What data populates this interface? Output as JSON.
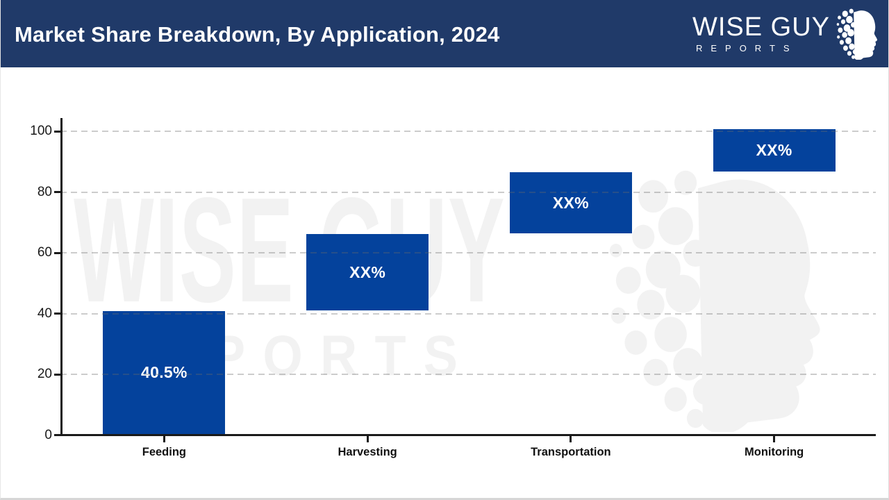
{
  "header": {
    "title": "Market Share Breakdown, By Application, 2024",
    "brand": {
      "name": "WISE GUY",
      "sub": "REPORTS"
    }
  },
  "watermark": {
    "name": "WISE GUY",
    "sub": "REPORTS"
  },
  "colors": {
    "header_bg": "#203a69",
    "bar": "#04429c",
    "axis_text": "#1a1a1a",
    "watermark": "#f2f2f2"
  },
  "chart_data": {
    "type": "bar",
    "subtype": "waterfall",
    "title": "Market Share Breakdown, By Application, 2024",
    "categories": [
      "Feeding",
      "Harvesting",
      "Transportation",
      "Monitoring"
    ],
    "bars": [
      {
        "category": "Feeding",
        "label": "40.5%",
        "start": 0,
        "end": 40.5
      },
      {
        "category": "Harvesting",
        "label": "XX%",
        "start": 40.7,
        "end": 65.8
      },
      {
        "category": "Transportation",
        "label": "XX%",
        "start": 66.0,
        "end": 86.2
      },
      {
        "category": "Monitoring",
        "label": "XX%",
        "start": 86.4,
        "end": 100.4
      }
    ],
    "yticks": [
      0,
      20,
      40,
      60,
      80,
      100
    ],
    "ylim": [
      0,
      104
    ],
    "xlabel": "",
    "ylabel": "",
    "grid": "dashed-horizontal",
    "legend": "none"
  }
}
